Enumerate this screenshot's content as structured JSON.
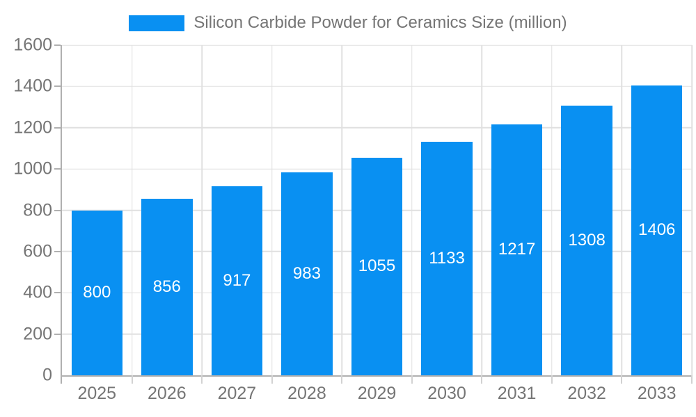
{
  "chart_data": {
    "type": "bar",
    "title": "Silicon Carbide Powder for Ceramics Size (million)",
    "categories": [
      "2025",
      "2026",
      "2027",
      "2028",
      "2029",
      "2030",
      "2031",
      "2032",
      "2033"
    ],
    "values": [
      800,
      856,
      917,
      983,
      1055,
      1133,
      1217,
      1308,
      1406
    ],
    "xlabel": "",
    "ylabel": "",
    "ylim": [
      0,
      1600
    ],
    "yticks": [
      0,
      200,
      400,
      600,
      800,
      1000,
      1200,
      1400,
      1600
    ],
    "grid": true,
    "legend_position": "top-center",
    "value_labels": "inside-center",
    "colors": {
      "bar": "#0990F2",
      "bar_label": "#ffffff",
      "axis_text": "#757575",
      "axis_line": "#b0b0b0",
      "gridline": "#e0e0e0",
      "background": "#ffffff"
    }
  }
}
